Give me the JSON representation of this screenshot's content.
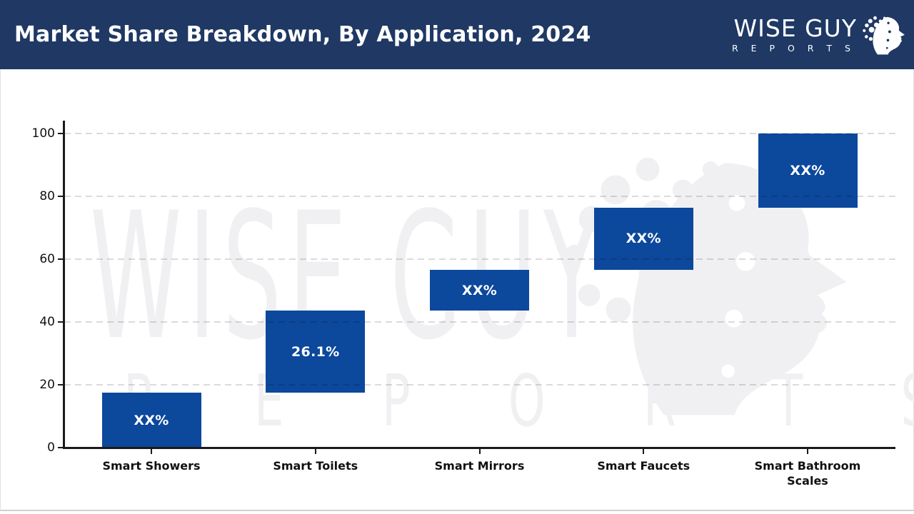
{
  "header": {
    "title": "Market Share Breakdown, By Application, 2024",
    "bg_color": "#1f3864",
    "logo": {
      "line1": "WISE GUY",
      "line2": "R E P O R T S"
    }
  },
  "watermark": {
    "line1": "WISE GUY",
    "line2": "R E P O R T S"
  },
  "chart_data": {
    "type": "bar",
    "variant": "floating-waterfall",
    "title": "Market Share Breakdown, By Application, 2024",
    "categories": [
      "Smart Showers",
      "Smart Toilets",
      "Smart Mirrors",
      "Smart Faucets",
      "Smart Bathroom Scales"
    ],
    "segments": [
      {
        "category": "Smart Showers",
        "start": 0,
        "end": 17.5,
        "label": "XX%"
      },
      {
        "category": "Smart Toilets",
        "start": 17.5,
        "end": 43.6,
        "label": "26.1%"
      },
      {
        "category": "Smart Mirrors",
        "start": 43.6,
        "end": 56.6,
        "label": "XX%"
      },
      {
        "category": "Smart Faucets",
        "start": 56.6,
        "end": 76.4,
        "label": "XX%"
      },
      {
        "category": "Smart Bathroom Scales",
        "start": 76.4,
        "end": 100,
        "label": "XX%"
      }
    ],
    "bar_color": "#0c489c",
    "bar_label_color": "#ffffff",
    "ylim": [
      0,
      100
    ],
    "yticks": [
      0,
      20,
      40,
      60,
      80,
      100
    ],
    "xlabel": "",
    "ylabel": "",
    "grid": {
      "axis": "y",
      "style": "dashed",
      "on": true,
      "above_bars": true
    },
    "legend": "none"
  }
}
